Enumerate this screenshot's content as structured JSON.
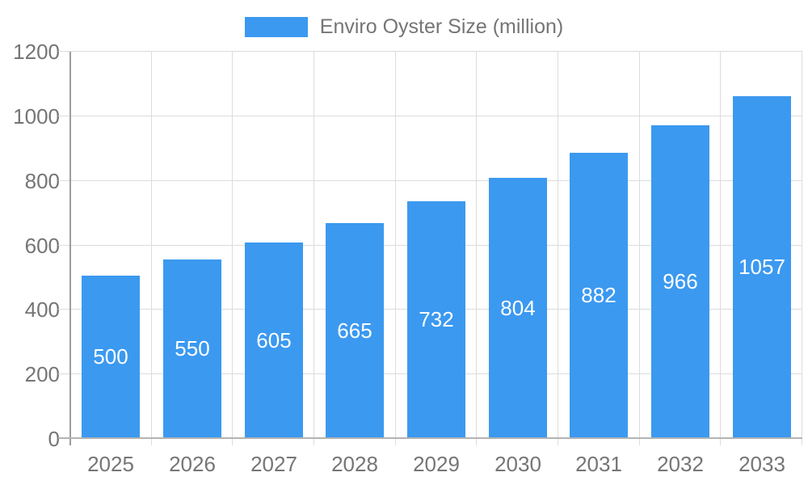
{
  "chart_data": {
    "type": "bar",
    "title": "Enviro Oyster Size (million)",
    "series": [
      {
        "name": "Enviro Oyster Size (million)",
        "values": [
          500,
          550,
          605,
          665,
          732,
          804,
          882,
          966,
          1057
        ]
      }
    ],
    "categories": [
      "2025",
      "2026",
      "2027",
      "2028",
      "2029",
      "2030",
      "2031",
      "2032",
      "2033"
    ],
    "xlabel": "",
    "ylabel": "",
    "ylim": [
      0,
      1200
    ],
    "yticks": [
      0,
      200,
      400,
      600,
      800,
      1000,
      1200
    ],
    "grid": true,
    "legend_position": "top-center",
    "bar_color": "#3B99F0",
    "bar_label_color": "#ffffff",
    "axis_text_color": "#757575",
    "grid_color": "#dcdcdc"
  }
}
